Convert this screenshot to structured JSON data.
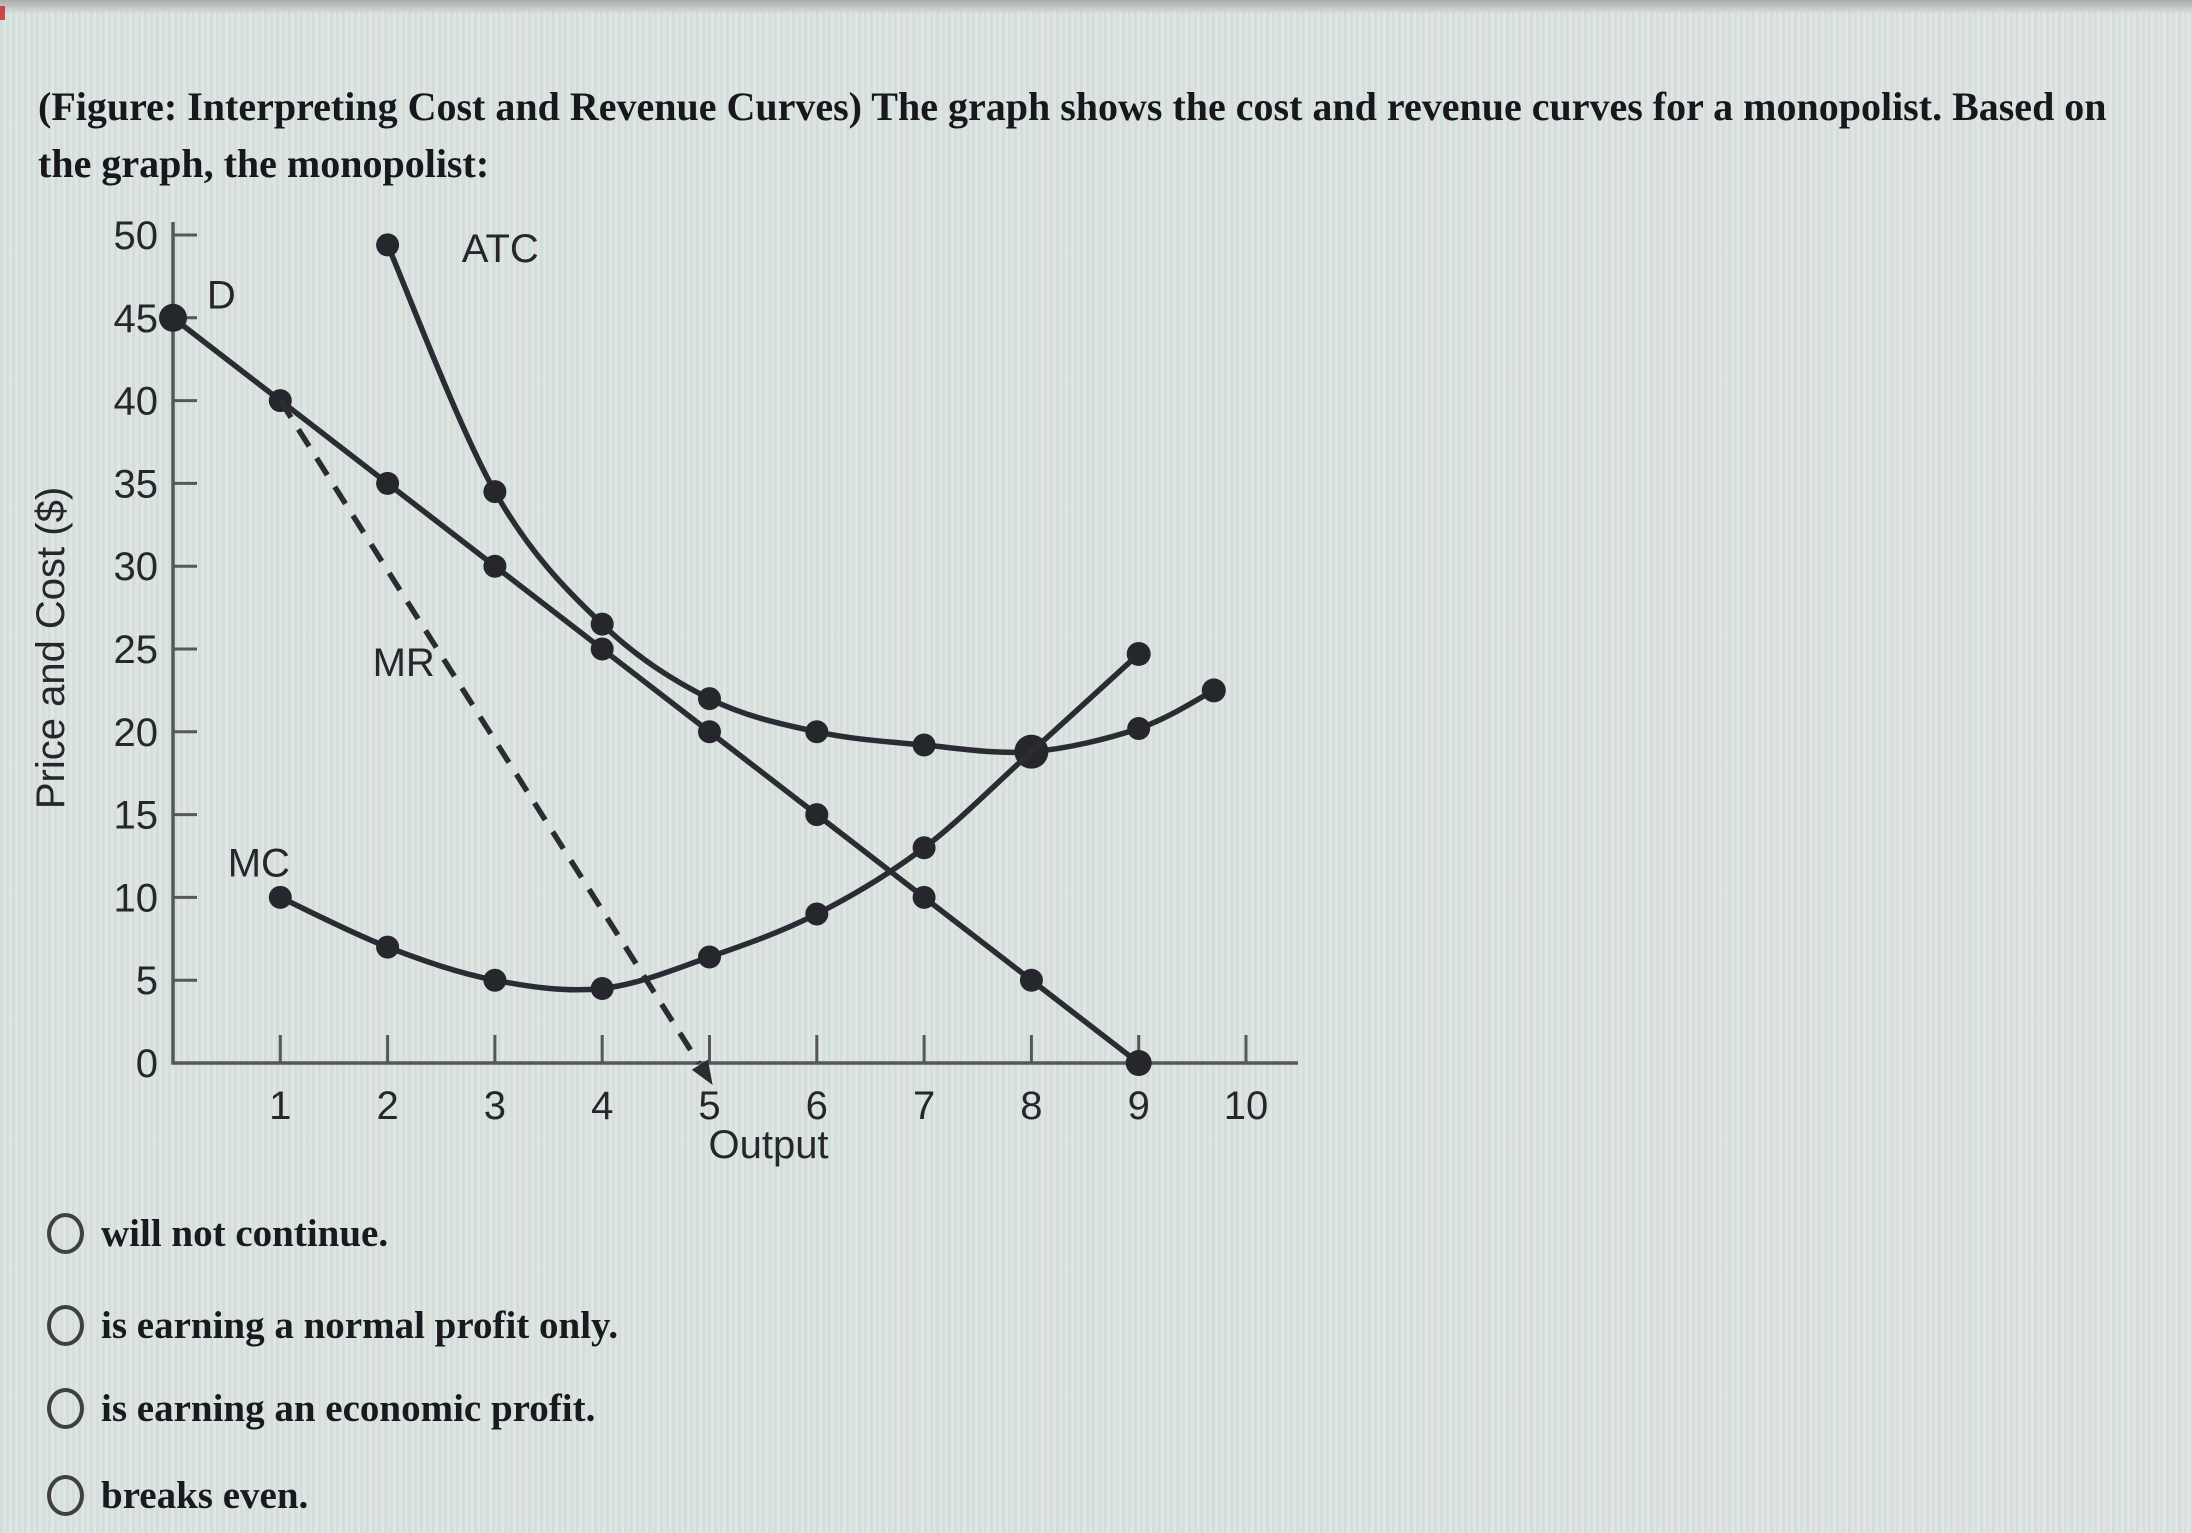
{
  "question": {
    "title_line1": "(Figure: Interpreting Cost and Revenue Curves) The graph shows the cost and revenue curves for a monopolist. Based on",
    "title_line2": "the graph, the monopolist:"
  },
  "options": [
    {
      "label": "will not continue.",
      "selected": false
    },
    {
      "label": "is earning a normal profit only.",
      "selected": false
    },
    {
      "label": "is earning an economic profit.",
      "selected": false
    },
    {
      "label": "breaks even.",
      "selected": false
    }
  ],
  "chart_data": {
    "type": "line",
    "title": "",
    "xlabel": "Output",
    "ylabel": "Price and Cost ($)",
    "xlim": [
      0,
      10.4
    ],
    "ylim": [
      0,
      50
    ],
    "x_ticks": [
      1,
      2,
      3,
      4,
      5,
      6,
      7,
      8,
      9,
      10
    ],
    "y_ticks": [
      0,
      5,
      10,
      15,
      20,
      25,
      30,
      35,
      40,
      45,
      50
    ],
    "grid": false,
    "legend": "inline-labels",
    "line_color": "#2b2c33",
    "axis_color": "#55575c",
    "series": [
      {
        "name": "D",
        "style": "solid",
        "smooth": false,
        "arrow": false,
        "label": {
          "text": "D",
          "x": 0.45,
          "y": 46.4
        },
        "points": [
          [
            0,
            45,
            14
          ],
          [
            1,
            40
          ],
          [
            2,
            35
          ],
          [
            3,
            30
          ],
          [
            4,
            25
          ],
          [
            5,
            20
          ],
          [
            6,
            15
          ],
          [
            7,
            10
          ],
          [
            8,
            5
          ],
          [
            9,
            0,
            13
          ]
        ]
      },
      {
        "name": "MR",
        "style": "dashed",
        "smooth": false,
        "arrow": true,
        "label": {
          "text": "MR",
          "x": 2.15,
          "y": 24.2
        },
        "points": [
          [
            1,
            40,
            0
          ],
          [
            4.9,
            0,
            0
          ]
        ]
      },
      {
        "name": "ATC",
        "style": "solid",
        "smooth": true,
        "arrow": false,
        "label": {
          "text": "ATC",
          "x": 3.05,
          "y": 49.2
        },
        "points": [
          [
            2,
            49.4
          ],
          [
            3,
            34.5
          ],
          [
            4,
            26.5
          ],
          [
            5,
            22
          ],
          [
            6,
            20
          ],
          [
            7,
            19.2
          ],
          [
            8,
            18.8,
            17
          ],
          [
            9,
            20.2
          ],
          [
            9.7,
            22.5,
            12
          ]
        ]
      },
      {
        "name": "MC",
        "style": "solid",
        "smooth": true,
        "arrow": false,
        "label": {
          "text": "MC",
          "x": 0.8,
          "y": 12.1
        },
        "points": [
          [
            1,
            10
          ],
          [
            2,
            7
          ],
          [
            3,
            5
          ],
          [
            4,
            4.5
          ],
          [
            5,
            6.4
          ],
          [
            6,
            9
          ],
          [
            7,
            13
          ],
          [
            8,
            18.8,
            0
          ],
          [
            9,
            24.7,
            12
          ]
        ]
      }
    ]
  }
}
